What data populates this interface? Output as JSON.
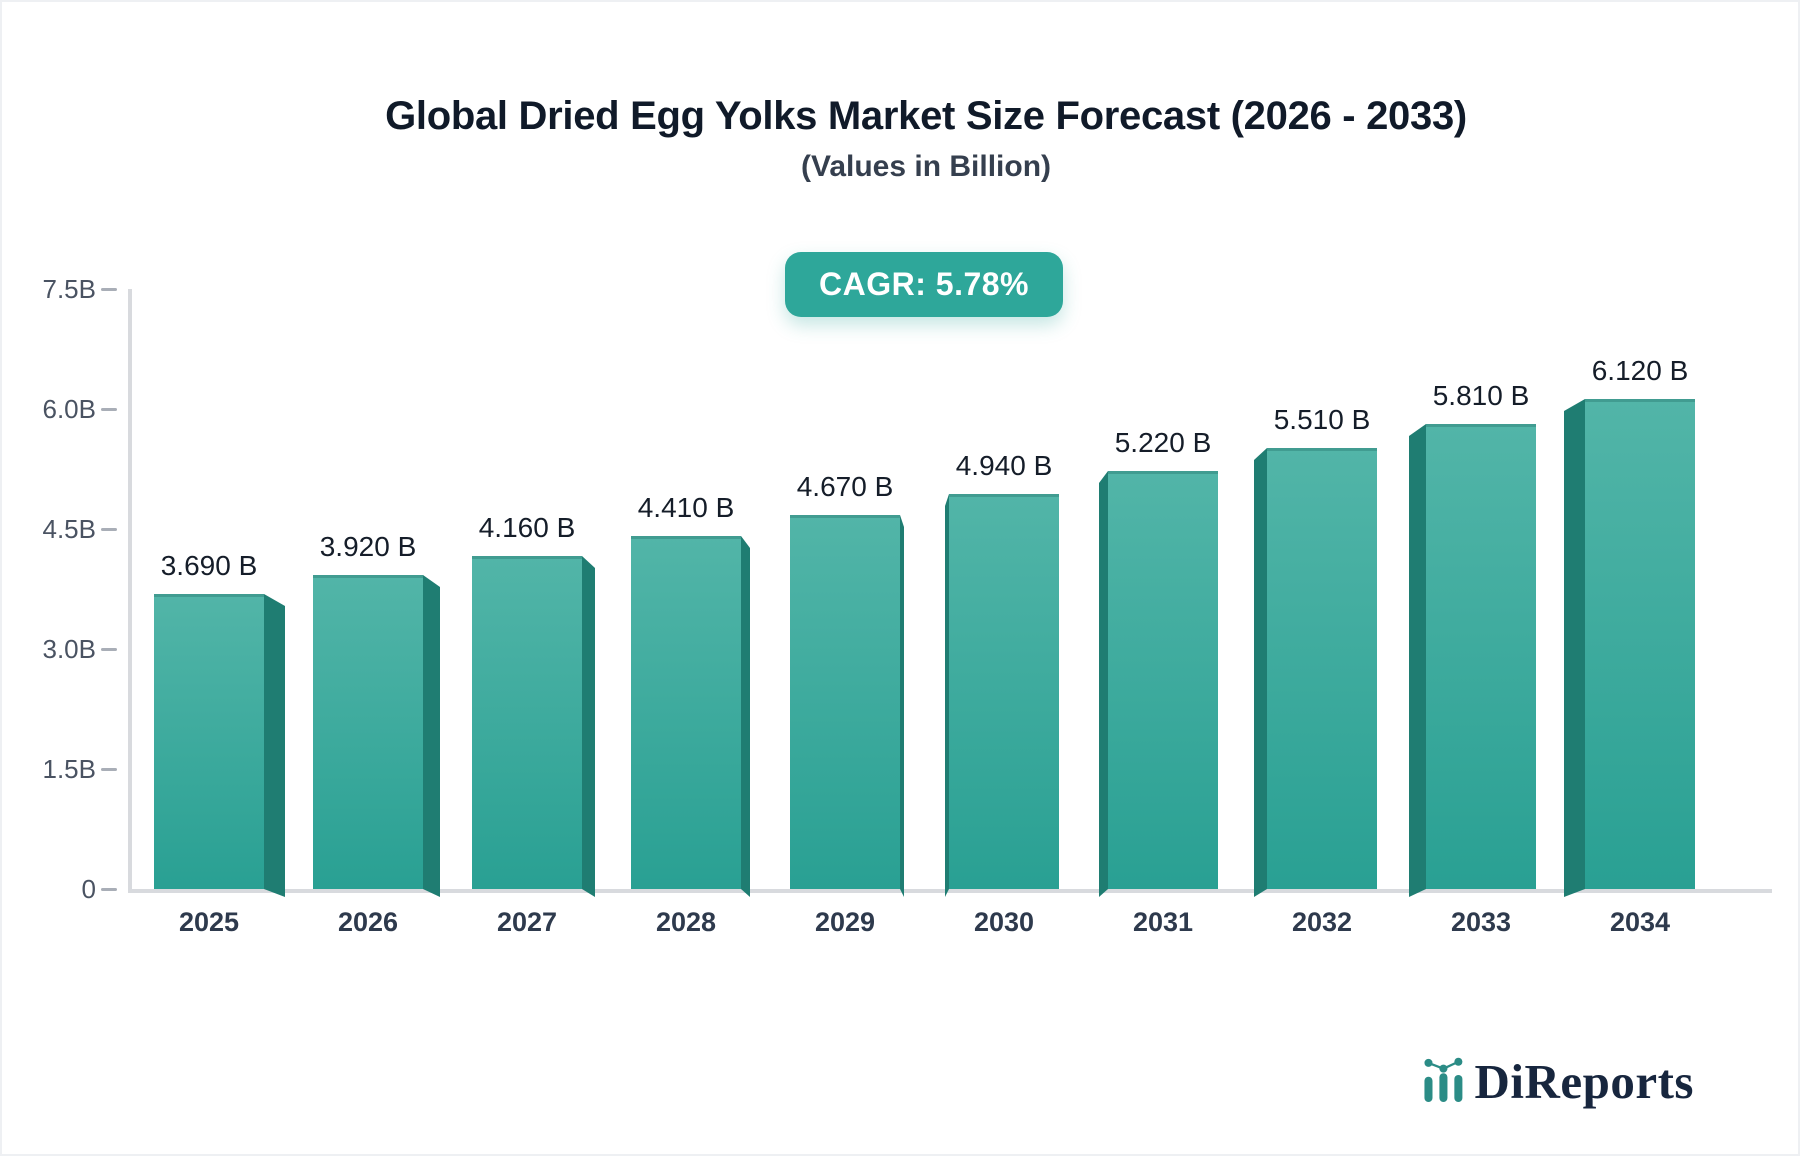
{
  "header": {
    "title": "Global Dried Egg Yolks Market Size Forecast (2026 - 2033)",
    "subtitle": "(Values in Billion)",
    "cagr_label": "CAGR: 5.78%"
  },
  "chart_data": {
    "type": "bar",
    "title": "Global Dried Egg Yolks Market Size Forecast (2026 - 2033)",
    "subtitle": "(Values in Billion)",
    "categories": [
      "2025",
      "2026",
      "2027",
      "2028",
      "2029",
      "2030",
      "2031",
      "2032",
      "2033",
      "2034"
    ],
    "values": [
      3.69,
      3.92,
      4.16,
      4.41,
      4.67,
      4.94,
      5.22,
      5.51,
      5.81,
      6.12
    ],
    "value_labels": [
      "3.690 B",
      "3.920 B",
      "4.160 B",
      "4.410 B",
      "4.670 B",
      "4.940 B",
      "5.220 B",
      "5.510 B",
      "5.810 B",
      "6.120 B"
    ],
    "xlabel": "",
    "ylabel": "",
    "ylim": [
      0,
      7.5
    ],
    "yticks": [
      {
        "label": "7.5B",
        "value": 7.5
      },
      {
        "label": "6.0B",
        "value": 6.0
      },
      {
        "label": "4.5B",
        "value": 4.5
      },
      {
        "label": "3.0B",
        "value": 3.0
      },
      {
        "label": "1.5B",
        "value": 1.5
      },
      {
        "label": "0",
        "value": 0
      }
    ],
    "grid": false,
    "legend": "none",
    "annotations": [
      "CAGR: 5.78%"
    ]
  },
  "colors": {
    "accent_teal": "#2ea79a",
    "bar_gradient_top": "#52b5a8",
    "bar_gradient_bottom": "#29a093",
    "bar_side_dark": "#1f7d72",
    "axis_line": "#d8dade",
    "tick_dash": "#a9aeb7",
    "title_text": "#101a29",
    "logo_navy": "#17263e"
  },
  "branding": {
    "logo_text": "DiReports",
    "logo_icon": "bar-chart-icon"
  }
}
